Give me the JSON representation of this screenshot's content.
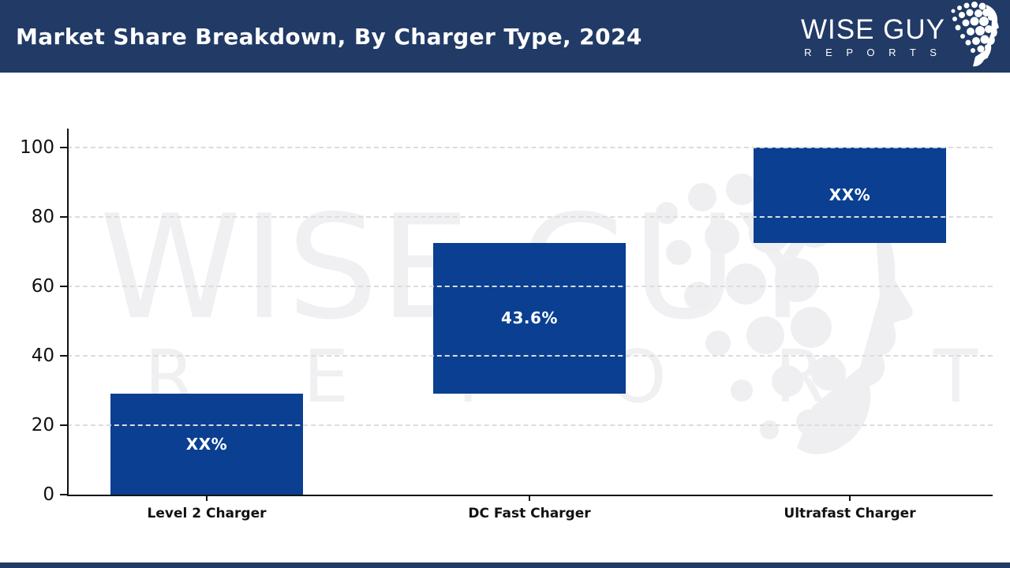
{
  "header": {
    "title": "Market Share Breakdown, By Charger Type, 2024",
    "logo": {
      "line1": "WISE GUY",
      "line2": "R E P O R T S"
    }
  },
  "watermark": {
    "line1": "WISE GUY",
    "line2": "R E P O R T S"
  },
  "colors": {
    "header_bg": "#213a66",
    "footer_bg": "#213a66",
    "bar": "#0a3f92",
    "grid": "#dcdcdc",
    "axis": "#111111",
    "bar_label": "#ffffff",
    "watermark": "#f0f0f3"
  },
  "chart_data": {
    "type": "bar",
    "subtype": "floating-waterfall",
    "title": "Market Share Breakdown, By Charger Type, 2024",
    "categories": [
      "Level 2 Charger",
      "DC Fast Charger",
      "Ultrafast Charger"
    ],
    "segments": [
      {
        "category": "Level 2 Charger",
        "start": 0,
        "end": 29,
        "value": 29,
        "label": "XX%"
      },
      {
        "category": "DC Fast Charger",
        "start": 29,
        "end": 72.6,
        "value": 43.6,
        "label": "43.6%"
      },
      {
        "category": "Ultrafast Charger",
        "start": 72.6,
        "end": 100,
        "value": 27.4,
        "label": "XX%"
      }
    ],
    "values": [
      29,
      43.6,
      27.4
    ],
    "xlabel": "",
    "ylabel": "",
    "ylim": [
      0,
      100
    ],
    "yticks": [
      0,
      20,
      40,
      60,
      80,
      100
    ],
    "grid": "horizontal-dashed",
    "grid_above_bars": true,
    "legend": "none",
    "bar_color": "#0a3f92"
  }
}
